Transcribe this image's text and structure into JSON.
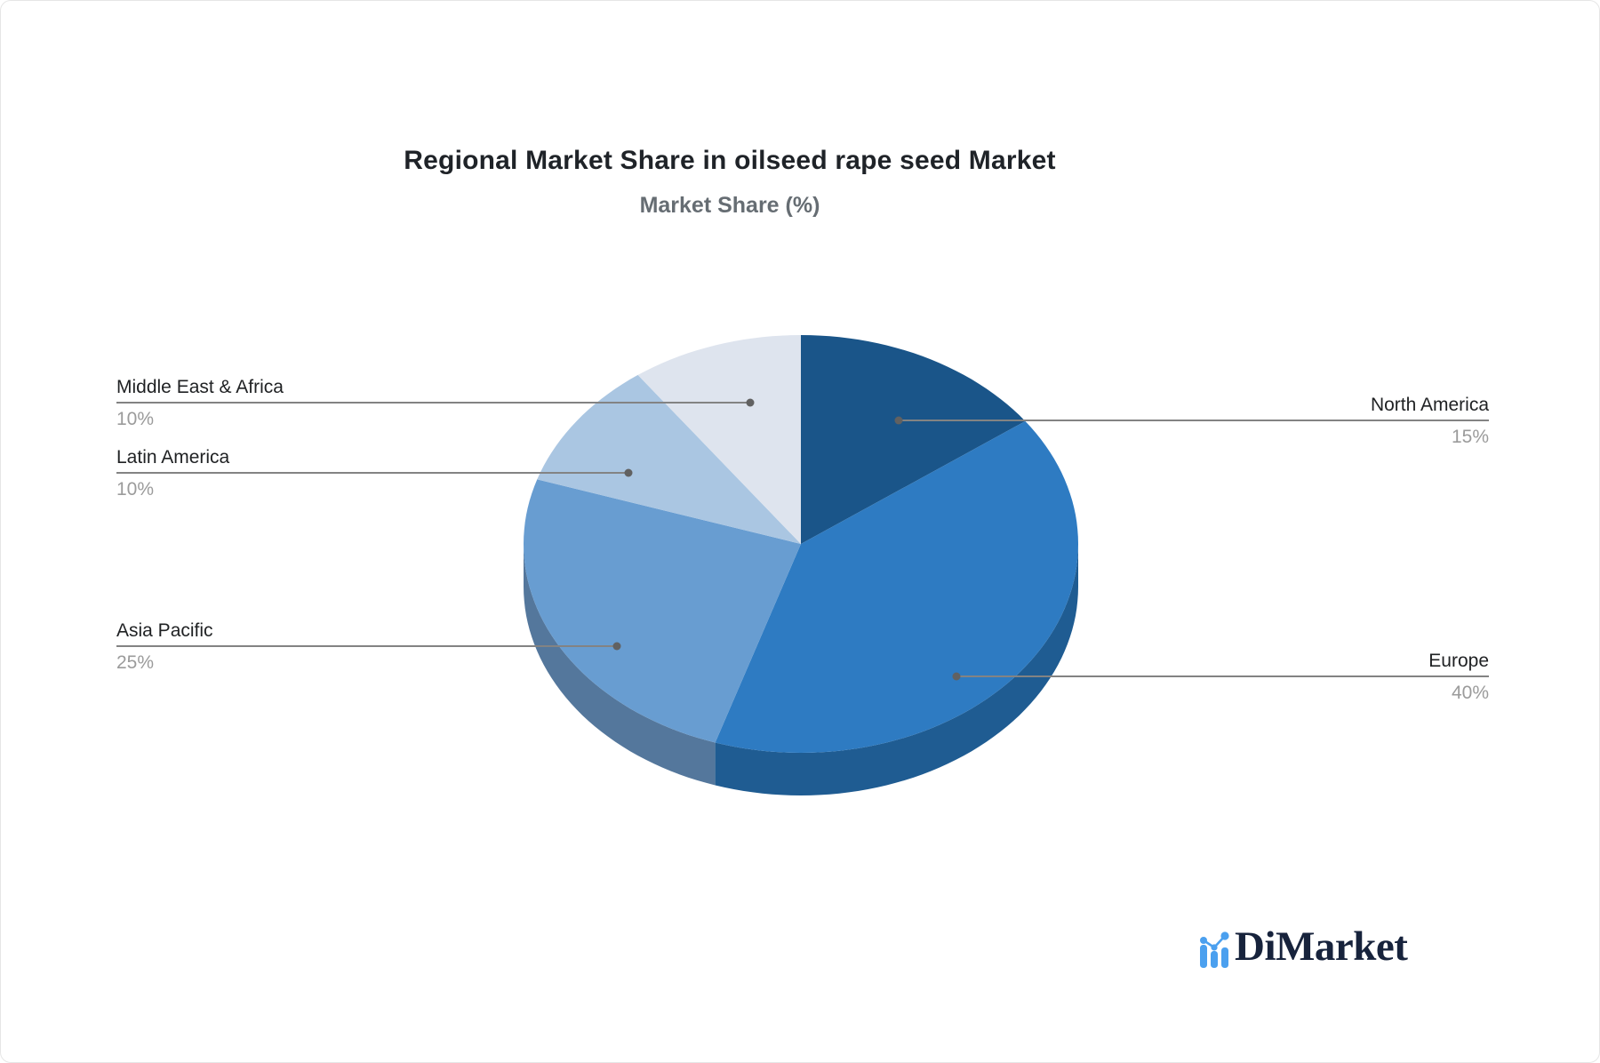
{
  "header": {
    "title": "Regional Market Share in oilseed rape seed Market",
    "subtitle": "Market Share (%)"
  },
  "chart_data": {
    "type": "pie",
    "style": "3d",
    "title": "Regional Market Share in oilseed rape seed Market",
    "subtitle": "Market Share (%)",
    "unit": "%",
    "start_angle_deg": 0,
    "direction": "clockwise",
    "slices": [
      {
        "name": "North America",
        "value": 15,
        "pct_label": "15%",
        "color": "#1a5589",
        "side_color": "#143f66",
        "label_side": "right"
      },
      {
        "name": "Europe",
        "value": 40,
        "pct_label": "40%",
        "color": "#2e7bc2",
        "side_color": "#1f5c92",
        "label_side": "right"
      },
      {
        "name": "Asia Pacific",
        "value": 25,
        "pct_label": "25%",
        "color": "#689dd1",
        "side_color": "#54779c",
        "label_side": "left"
      },
      {
        "name": "Latin America",
        "value": 10,
        "pct_label": "10%",
        "color": "#aac6e2",
        "side_color": "#8aa6c2",
        "label_side": "left"
      },
      {
        "name": "Middle East & Africa",
        "value": 10,
        "pct_label": "10%",
        "color": "#dee4ee",
        "side_color": "#bcc5d3",
        "label_side": "left"
      }
    ],
    "connector_line_color": "#838383",
    "connector_dot_color": "#616161",
    "label_name_color": "#1f2123",
    "label_pct_color": "#9b9b9b"
  },
  "branding": {
    "name": "DiMarket",
    "icon": "bar-line-chart-icon",
    "text_color": "#17233c",
    "icon_color": "#4ba0ef"
  }
}
